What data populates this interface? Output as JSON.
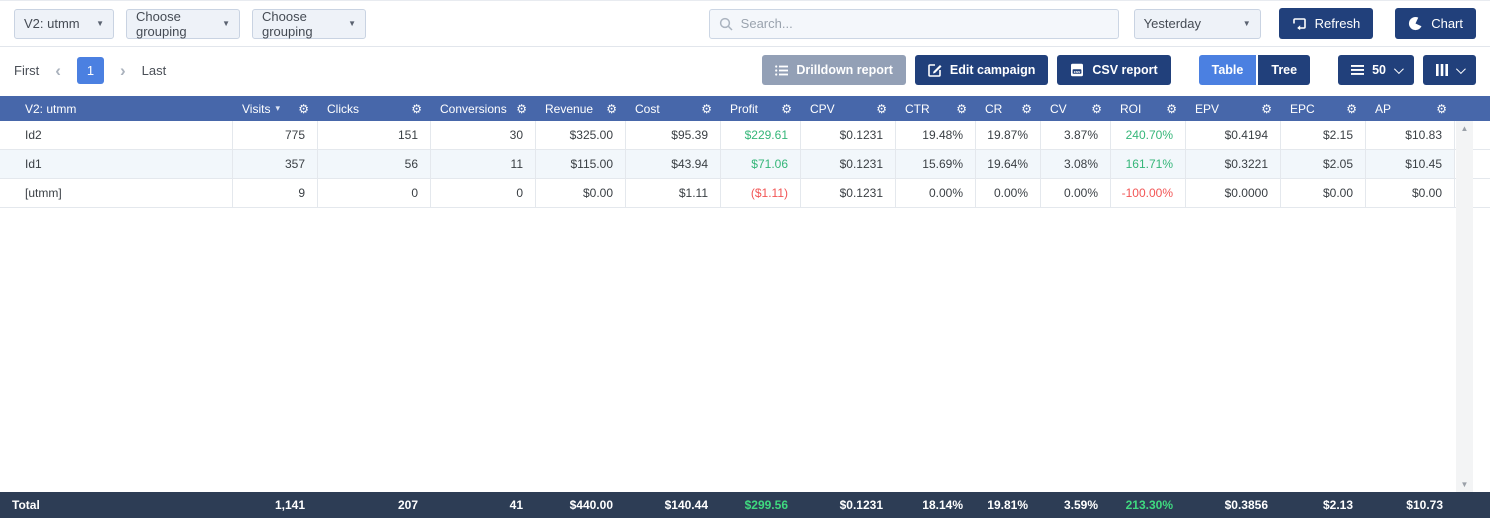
{
  "toolbar": {
    "campaign_select": "V2: utmm",
    "grouping1": "Choose grouping",
    "grouping2": "Choose grouping",
    "search_placeholder": "Search...",
    "date_range": "Yesterday",
    "refresh_label": "Refresh",
    "chart_label": "Chart"
  },
  "pagination": {
    "first": "First",
    "page": "1",
    "last": "Last"
  },
  "actions": {
    "drilldown": "Drilldown report",
    "edit_campaign": "Edit campaign",
    "csv": "CSV report",
    "table_view": "Table",
    "tree_view": "Tree",
    "rows_per_page": "50"
  },
  "colors": {
    "header_blue": "#4767aa",
    "active_blue": "#4b80e1",
    "navy": "#21407b",
    "footer_navy": "#2d3d55",
    "positive_green": "#35b679",
    "negative_red": "#f25656",
    "footer_green": "#3fd97f",
    "indicator_up": "#3cb87a",
    "indicator_down": "#ef5b62"
  },
  "table": {
    "columns": [
      {
        "key": "name",
        "label": "V2: utmm",
        "gear": false,
        "sort": false
      },
      {
        "key": "visits",
        "label": "Visits",
        "gear": true,
        "sort": true
      },
      {
        "key": "clicks",
        "label": "Clicks",
        "gear": true,
        "sort": false
      },
      {
        "key": "conversions",
        "label": "Conversions",
        "gear": true,
        "sort": false
      },
      {
        "key": "revenue",
        "label": "Revenue",
        "gear": true,
        "sort": false
      },
      {
        "key": "cost",
        "label": "Cost",
        "gear": true,
        "sort": false
      },
      {
        "key": "profit",
        "label": "Profit",
        "gear": true,
        "sort": false
      },
      {
        "key": "cpv",
        "label": "CPV",
        "gear": true,
        "sort": false
      },
      {
        "key": "ctr",
        "label": "CTR",
        "gear": true,
        "sort": false
      },
      {
        "key": "cr",
        "label": "CR",
        "gear": true,
        "sort": false
      },
      {
        "key": "cv",
        "label": "CV",
        "gear": true,
        "sort": false
      },
      {
        "key": "roi",
        "label": "ROI",
        "gear": true,
        "sort": false
      },
      {
        "key": "epv",
        "label": "EPV",
        "gear": true,
        "sort": false
      },
      {
        "key": "epc",
        "label": "EPC",
        "gear": true,
        "sort": false
      },
      {
        "key": "ap",
        "label": "AP",
        "gear": true,
        "sort": false
      }
    ],
    "rows": [
      {
        "name": "Id2",
        "status": "up",
        "values": [
          "775",
          "151",
          "30",
          "$325.00",
          "$95.39",
          "$229.61",
          "$0.1231",
          "19.48%",
          "19.87%",
          "3.87%",
          "240.70%",
          "$0.4194",
          "$2.15",
          "$10.83"
        ]
      },
      {
        "name": "Id1",
        "status": "up",
        "values": [
          "357",
          "56",
          "11",
          "$115.00",
          "$43.94",
          "$71.06",
          "$0.1231",
          "15.69%",
          "19.64%",
          "3.08%",
          "161.71%",
          "$0.3221",
          "$2.05",
          "$10.45"
        ]
      },
      {
        "name": "[utmm]",
        "status": "down",
        "values": [
          "9",
          "0",
          "0",
          "$0.00",
          "$1.11",
          "($1.11)",
          "$0.1231",
          "0.00%",
          "0.00%",
          "0.00%",
          "-100.00%",
          "$0.0000",
          "$0.00",
          "$0.00"
        ]
      }
    ],
    "total": {
      "label": "Total",
      "values": [
        "1,141",
        "207",
        "41",
        "$440.00",
        "$140.44",
        "$299.56",
        "$0.1231",
        "18.14%",
        "19.81%",
        "3.59%",
        "213.30%",
        "$0.3856",
        "$2.13",
        "$10.73"
      ]
    }
  }
}
